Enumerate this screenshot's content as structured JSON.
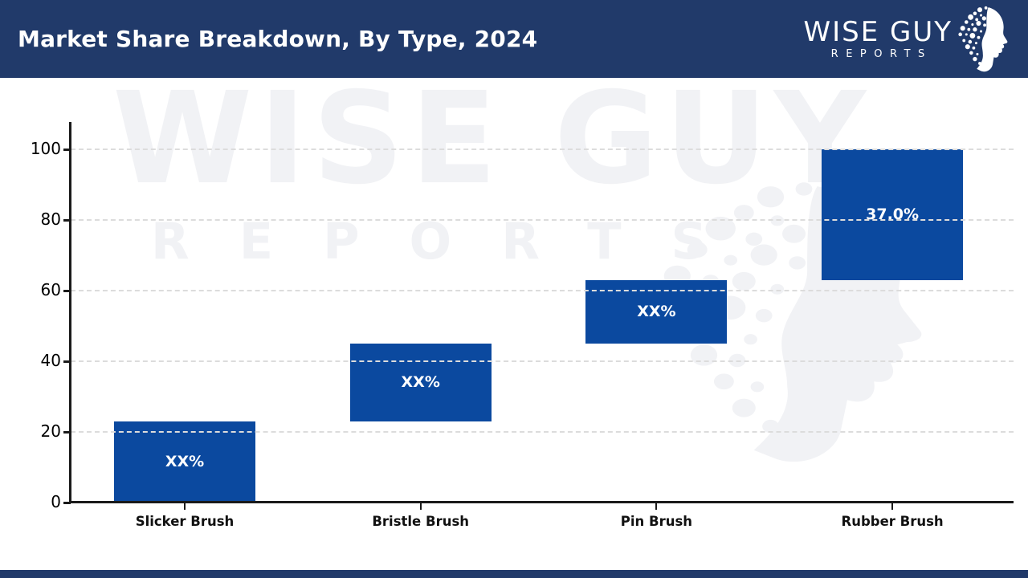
{
  "header": {
    "title": "Market Share Breakdown, By Type, 2024",
    "logo": {
      "wordmark": "WISE GUY",
      "subtext": "REPORTS"
    }
  },
  "watermark": {
    "wordmark": "WISE GUY",
    "subtext": "REPORTS"
  },
  "footer": {},
  "colors": {
    "header_bg": "#213a6a",
    "footer_bg": "#213a6a",
    "bar": "#0b499f",
    "bar_label": "#ffffff",
    "grid": "#dcdcdc",
    "axis": "#1a1a1a",
    "tick_label": "#000000",
    "watermark": "#f1f2f5"
  },
  "chart_data": {
    "type": "bar",
    "subtype": "waterfall",
    "title": "Market Share Breakdown, By Type, 2024",
    "categories": [
      "Slicker Brush",
      "Bristle Brush",
      "Pin Brush",
      "Rubber Brush"
    ],
    "series": [
      {
        "name": "Market Share (%)",
        "values": [
          23,
          22,
          18,
          37
        ],
        "starts": [
          0,
          23,
          45,
          63
        ],
        "ends": [
          23,
          45,
          63,
          100
        ]
      }
    ],
    "bar_labels": [
      "XX%",
      "XX%",
      "XX%",
      "37.0%"
    ],
    "xlabel": "",
    "ylabel": "",
    "ylim": [
      0,
      100
    ],
    "yticks": [
      0,
      20,
      40,
      60,
      80,
      100
    ],
    "grid": "horizontal-dashed",
    "legend": "none"
  }
}
